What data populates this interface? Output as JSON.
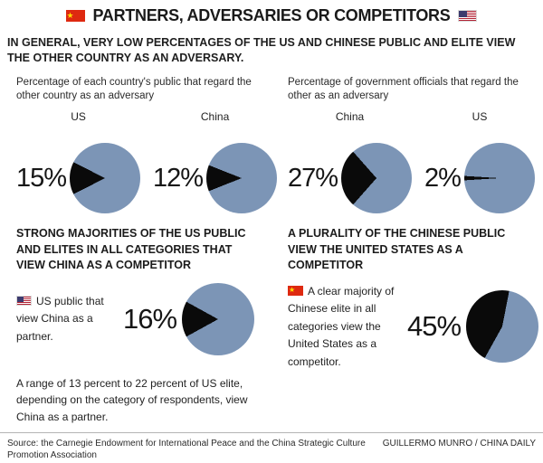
{
  "header": {
    "title": "PARTNERS, ADVERSARIES OR COMPETITORS"
  },
  "intro": "IN GENERAL, VERY LOW PERCENTAGES OF THE US AND CHINESE PUBLIC AND ELITE VIEW THE OTHER COUNTRY AS AN ADVERSARY.",
  "adversary": {
    "left": {
      "caption": "Percentage of each country's public that regard the other country as an adversary",
      "pies": [
        {
          "label": "US",
          "value": 15,
          "display": "15%"
        },
        {
          "label": "China",
          "value": 12,
          "display": "12%"
        }
      ]
    },
    "right": {
      "caption": "Percentage of government officials that regard the other as an adversary",
      "pies": [
        {
          "label": "China",
          "value": 27,
          "display": "27%"
        },
        {
          "label": "US",
          "value": 2,
          "display": "2%"
        }
      ]
    }
  },
  "competitor": {
    "left": {
      "heading": "STRONG MAJORITIES OF THE US PUBLIC AND ELITES IN ALL CATEGORIES THAT VIEW CHINA AS A COMPETITOR",
      "note": "US public that view China as a partner.",
      "pie": {
        "value": 16,
        "display": "16%"
      },
      "footnote": "A range of 13 percent to 22 percent of US elite, depending on the category of respondents, view China as a partner."
    },
    "right": {
      "heading": "A PLURALITY OF THE CHINESE PUBLIC VIEW THE UNITED STATES AS A COMPETITOR",
      "note": "A clear majority of Chinese elite in all categories view the United States as a competitor.",
      "pie": {
        "value": 45,
        "display": "45%"
      }
    }
  },
  "footer": {
    "source": "Source: the Carnegie Endowment for International Peace and the China Strategic Culture Promotion Association",
    "credit": "GUILLERMO MUNRO / CHINA DAILY"
  },
  "colors": {
    "pie_remainder": "#7c95b6",
    "pie_slice": "#0a0a0a",
    "cn_flag_red": "#de2910",
    "cn_flag_star": "#ffde00",
    "us_flag_red": "#b22234",
    "us_flag_blue": "#3c3b6e"
  },
  "chart_data": [
    {
      "type": "pie",
      "group": "Percentage of each country's public that regard the other country as an adversary",
      "entity": "US",
      "slices": [
        {
          "label": "regard other country as adversary",
          "pct": 15
        },
        {
          "label": "other",
          "pct": 85
        }
      ]
    },
    {
      "type": "pie",
      "group": "Percentage of each country's public that regard the other country as an adversary",
      "entity": "China",
      "slices": [
        {
          "label": "regard other country as adversary",
          "pct": 12
        },
        {
          "label": "other",
          "pct": 88
        }
      ]
    },
    {
      "type": "pie",
      "group": "Percentage of government officials that regard the other as an adversary",
      "entity": "China",
      "slices": [
        {
          "label": "regard other as adversary",
          "pct": 27
        },
        {
          "label": "other",
          "pct": 73
        }
      ]
    },
    {
      "type": "pie",
      "group": "Percentage of government officials that regard the other as an adversary",
      "entity": "US",
      "slices": [
        {
          "label": "regard other as adversary",
          "pct": 2
        },
        {
          "label": "other",
          "pct": 98
        }
      ]
    },
    {
      "type": "pie",
      "group": "US public that view China as a partner",
      "entity": "US public",
      "slices": [
        {
          "label": "view China as a partner",
          "pct": 16
        },
        {
          "label": "other",
          "pct": 84
        }
      ]
    },
    {
      "type": "pie",
      "group": "Chinese public/elite that view the United States as a competitor",
      "entity": "Chinese public",
      "slices": [
        {
          "label": "view the US as a competitor",
          "pct": 45
        },
        {
          "label": "other",
          "pct": 55
        }
      ]
    }
  ]
}
